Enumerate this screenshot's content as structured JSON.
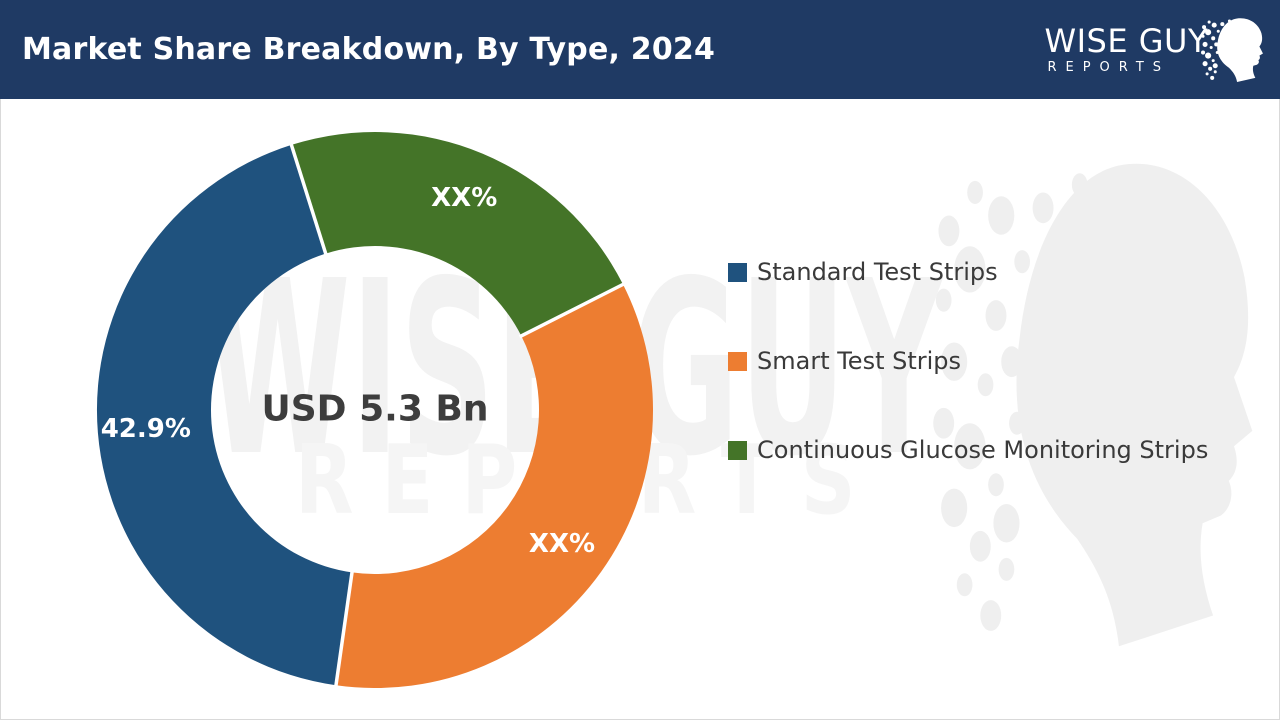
{
  "header": {
    "title": "Market Share Breakdown, By Type, 2024",
    "logo": {
      "wordmark": "WISE GUY",
      "sub": "REPORTS"
    }
  },
  "watermark": {
    "line1": "WISE GUY",
    "line2": "REPORTS"
  },
  "chart_data": {
    "type": "pie",
    "subtype": "donut",
    "title": "Market Share Breakdown, By Type, 2024",
    "center_label": "USD 5.3 Bn",
    "start_angle_deg": -17.5,
    "slices": [
      {
        "label": "Continuous Glucose Monitoring Strips",
        "display_value": "XX%",
        "value_pct": 22.4,
        "color": "#447428"
      },
      {
        "label": "Smart Test Strips",
        "display_value": "XX%",
        "value_pct": 34.7,
        "color": "#ED7D31"
      },
      {
        "label": "Standard Test Strips",
        "display_value": "42.9%",
        "value_pct": 42.9,
        "color": "#1F527E"
      }
    ],
    "legend_position": "right"
  }
}
